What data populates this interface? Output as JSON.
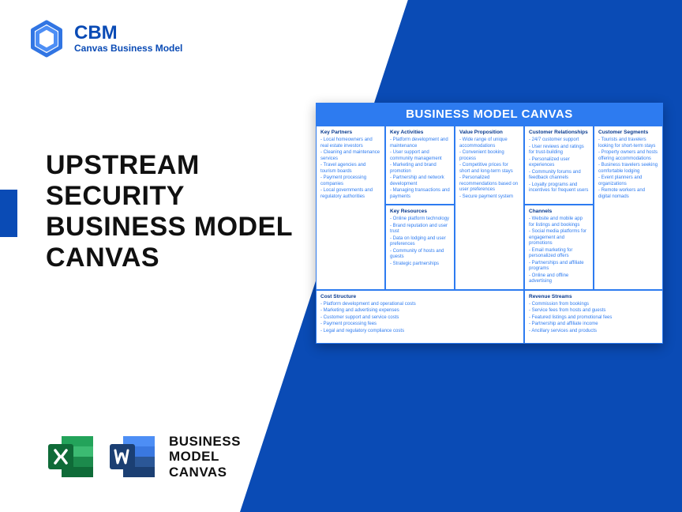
{
  "brand": {
    "abbr": "CBM",
    "name": "Canvas Business Model"
  },
  "title": "UPSTREAM SECURITY BUSINESS MODEL CANVAS",
  "footer": {
    "line1": "BUSINESS",
    "line2": "MODEL",
    "line3": "CANVAS"
  },
  "canvas": {
    "header": "BUSINESS MODEL CANVAS",
    "sections": {
      "keyPartners": {
        "title": "Key Partners",
        "items": [
          "Local homeowners and real estate investors",
          "Cleaning and maintenance services",
          "Travel agencies and tourism boards",
          "Payment processing companies",
          "Local governments and regulatory authorities"
        ]
      },
      "keyActivities": {
        "title": "Key Activities",
        "items": [
          "Platform development and maintenance",
          "User support and community management",
          "Marketing and brand promotion",
          "Partnership and network development",
          "Managing transactions and payments"
        ]
      },
      "keyResources": {
        "title": "Key Resources",
        "items": [
          "Online platform technology",
          "Brand reputation and user trust",
          "Data on lodging and user preferences",
          "Community of hosts and guests",
          "Strategic partnerships"
        ]
      },
      "valueProposition": {
        "title": "Value Proposition",
        "items": [
          "Wide range of unique accommodations",
          "Convenient booking process",
          "Competitive prices for short and long-term stays",
          "Personalized recommendations based on user preferences",
          "Secure payment system"
        ]
      },
      "customerRelationships": {
        "title": "Customer Relationships",
        "items": [
          "24/7 customer support",
          "User reviews and ratings for trust-building",
          "Personalized user experiences",
          "Community forums and feedback channels",
          "Loyalty programs and incentives for frequent users"
        ]
      },
      "channels": {
        "title": "Channels",
        "items": [
          "Website and mobile app for listings and bookings",
          "Social media platforms for engagement and promotions",
          "Email marketing for personalized offers",
          "Partnerships and affiliate programs",
          "Online and offline advertising"
        ]
      },
      "customerSegments": {
        "title": "Customer Segments",
        "items": [
          "Tourists and travelers looking for short-term stays",
          "Property owners and hosts offering accommodations",
          "Business travelers seeking comfortable lodging",
          "Event planners and organizations",
          "Remote workers and digital nomads"
        ]
      },
      "costStructure": {
        "title": "Cost Structure",
        "items": [
          "Platform development and operational costs",
          "Marketing and advertising expenses",
          "Customer support and service costs",
          "Payment processing fees",
          "Legal and regulatory compliance costs"
        ]
      },
      "revenueStreams": {
        "title": "Revenue Streams",
        "items": [
          "Commission from bookings",
          "Service fees from hosts and guests",
          "Featured listings and promotional fees",
          "Partnership and affiliate income",
          "Ancillary services and products"
        ]
      }
    }
  },
  "colors": {
    "primary": "#0a4bb5",
    "accent": "#2d7bf0",
    "excel": "#1c8a4c",
    "word": "#2b5797"
  }
}
